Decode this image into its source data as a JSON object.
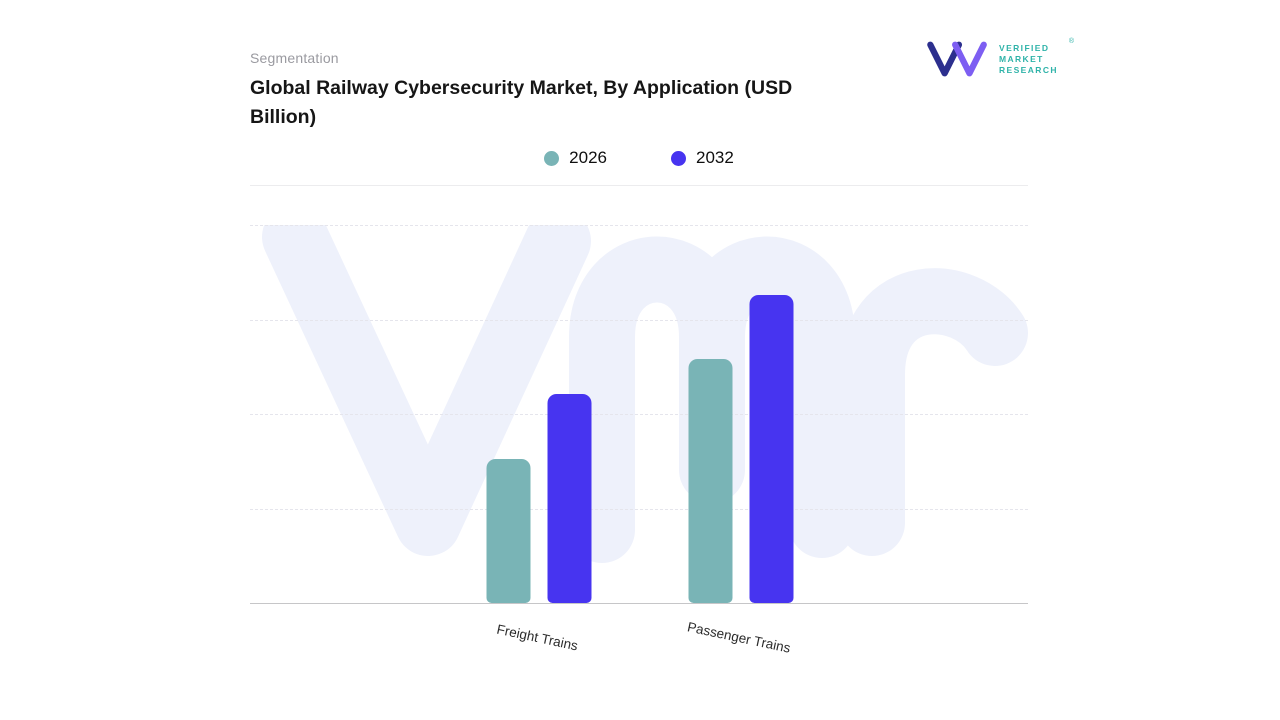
{
  "header": {
    "eyebrow": "Segmentation",
    "title": "Global Railway Cybersecurity Market, By Application (USD Billion)"
  },
  "logo": {
    "monogram": "VMR",
    "lines": [
      "VERIFIED",
      "MARKET",
      "RESEARCH"
    ],
    "registered_mark": "®",
    "text_color": "#2fb3a9",
    "monogram_navy": "#2c2f8e",
    "monogram_purple": "#7d5ef2"
  },
  "chart_data": {
    "type": "bar",
    "title": "Global Railway Cybersecurity Market, By Application (USD Billion)",
    "categories": [
      "Freight Trains",
      "Passenger Trains"
    ],
    "series": [
      {
        "name": "2026",
        "color": "#79b4b6",
        "values": [
          1.45,
          2.45
        ]
      },
      {
        "name": "2032",
        "color": "#4734f0",
        "values": [
          2.1,
          3.1
        ]
      }
    ],
    "xlabel": "",
    "ylabel": "USD Billion",
    "ylim": [
      0,
      3.8
    ],
    "gridlines": "horizontal-dashed",
    "legend_position": "top-center",
    "watermark": "vmr"
  }
}
